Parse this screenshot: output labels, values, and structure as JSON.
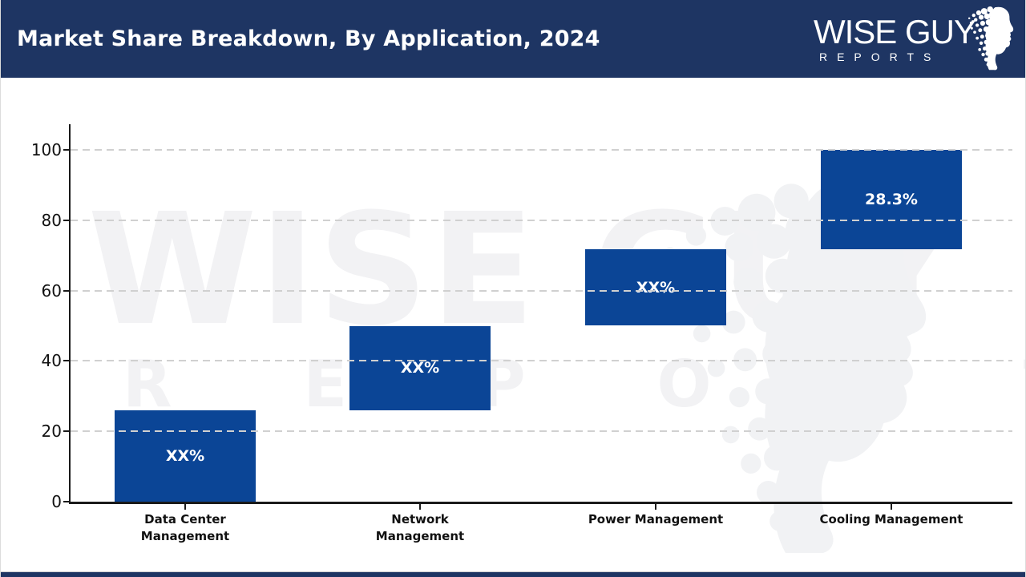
{
  "header": {
    "title": "Market Share Breakdown, By Application, 2024",
    "bg_color": "#1e3563",
    "logo": {
      "line1": "WISE GUY",
      "line2": "REPORTS"
    }
  },
  "watermark": {
    "line1": "WISE GUY",
    "line2": "R E P O R T S"
  },
  "chart_data": {
    "type": "bar",
    "subtype": "floating-waterfall",
    "title": "Market Share Breakdown, By Application, 2024",
    "categories": [
      "Data Center Management",
      "Network Management",
      "Power Management",
      "Cooling Management"
    ],
    "segments": [
      {
        "category": "Data Center Management",
        "start": 0,
        "end": 26,
        "label": "XX%"
      },
      {
        "category": "Network Management",
        "start": 26,
        "end": 50,
        "label": "XX%"
      },
      {
        "category": "Power Management",
        "start": 50,
        "end": 71.7,
        "label": "XX%"
      },
      {
        "category": "Cooling Management",
        "start": 71.7,
        "end": 100,
        "label": "28.3%"
      }
    ],
    "ylim": [
      0,
      100
    ],
    "yticks": [
      0,
      20,
      40,
      60,
      80,
      100
    ],
    "xlabel": "",
    "ylabel": "",
    "grid": "horizontal-dashed",
    "legend": "none",
    "bar_color": "#0b4596",
    "bar_label_color": "#ffffff",
    "axis_color": "#1a1a1a",
    "grid_color": "#d0d0d0"
  }
}
